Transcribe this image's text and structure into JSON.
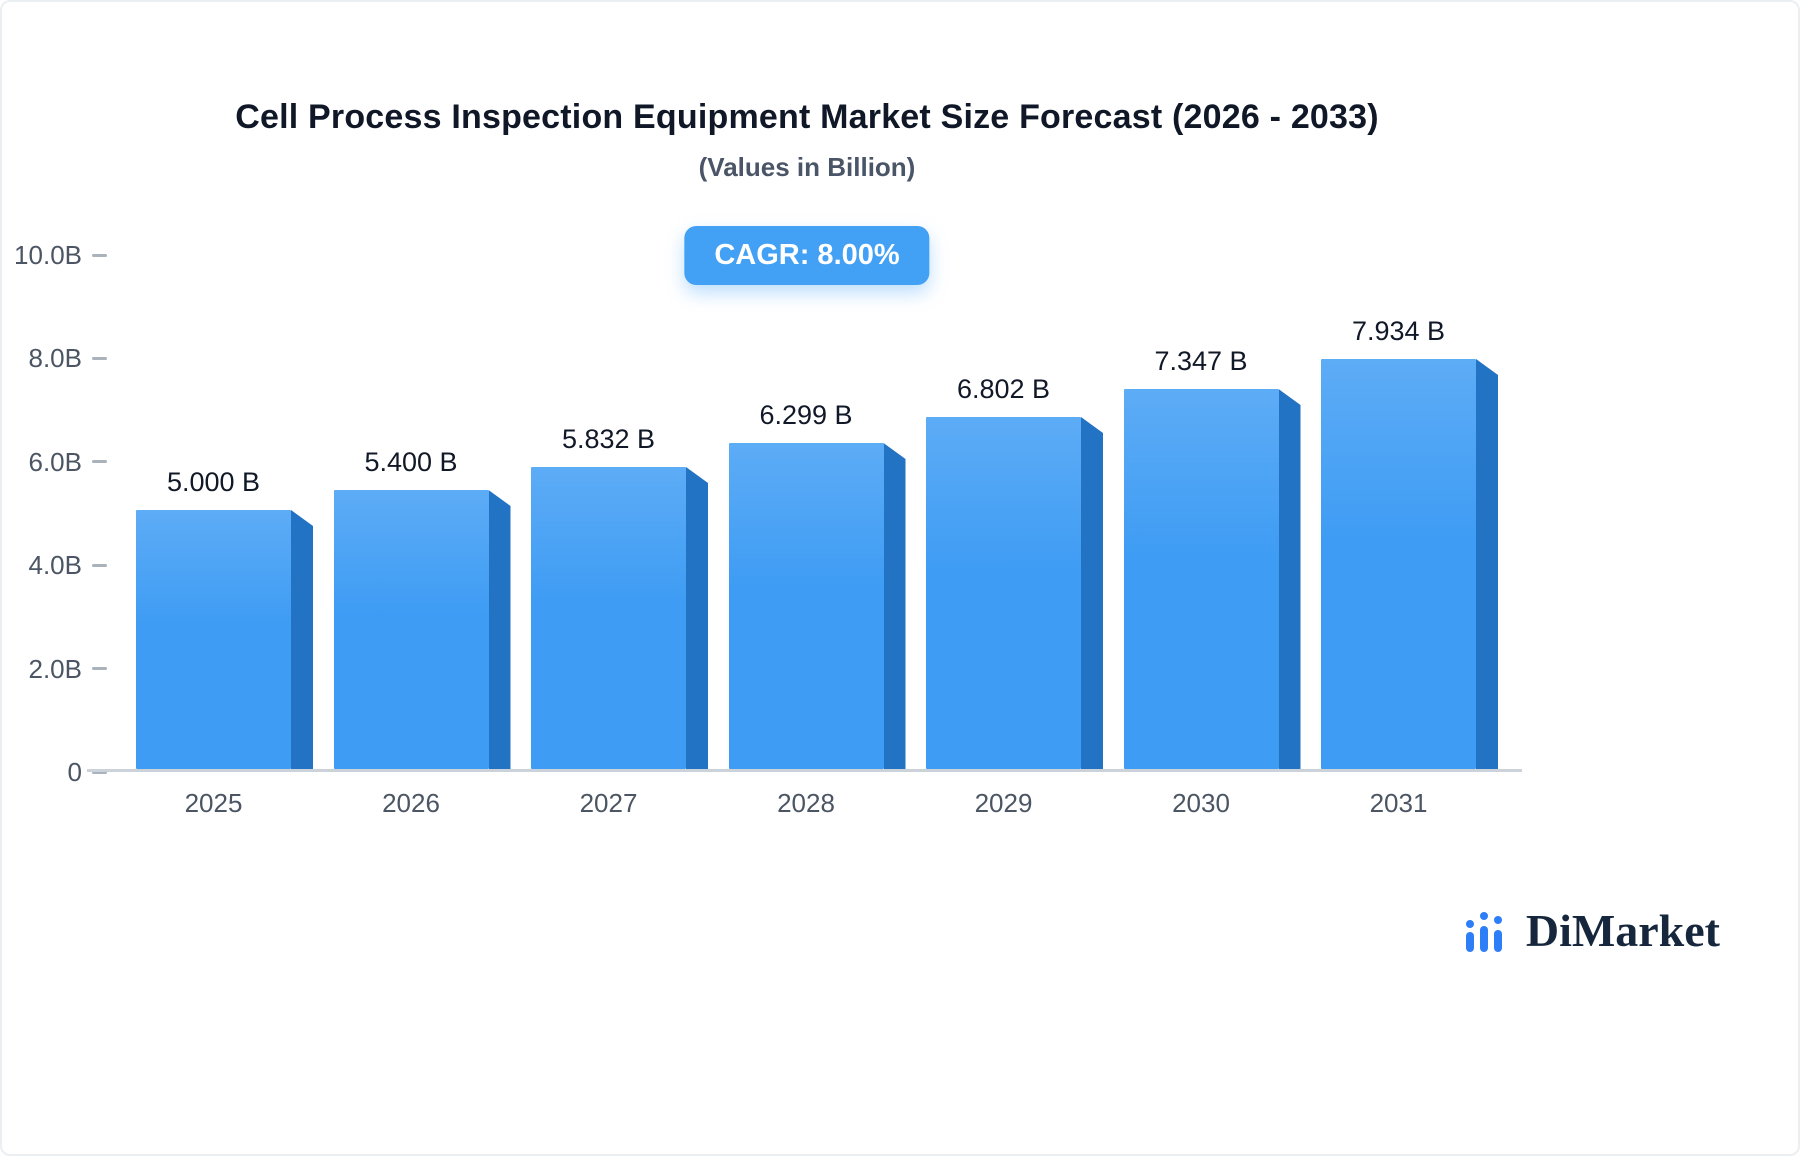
{
  "chart_data": {
    "type": "bar",
    "title": "Cell Process Inspection Equipment Market Size Forecast (2026 - 2033)",
    "subtitle": "(Values in Billion)",
    "cagr_label": "CAGR: 8.00%",
    "categories": [
      "2025",
      "2026",
      "2027",
      "2028",
      "2029",
      "2030",
      "2031"
    ],
    "values": [
      5.0,
      5.4,
      5.832,
      6.299,
      6.802,
      7.347,
      7.934
    ],
    "value_labels": [
      "5.000 B",
      "5.400 B",
      "5.832 B",
      "6.299 B",
      "6.802 B",
      "7.347 B",
      "7.934 B"
    ],
    "xlabel": "",
    "ylabel": "",
    "ylim": [
      0,
      10
    ],
    "y_tick_values": [
      0,
      2,
      4,
      6,
      8,
      10
    ],
    "y_tick_labels": [
      "0",
      "2.0B",
      "4.0B",
      "6.0B",
      "8.0B",
      "10.0B"
    ],
    "legend": "none",
    "grid": "off",
    "bar_face_color": "#3E9CF4",
    "bar_side_color": "#2273C4"
  },
  "colors": {
    "badge_bg": "#42a0f5",
    "badge_text": "#ffffff",
    "axis_line": "#ccd2d9",
    "brand_icon": "#2e7ef7",
    "brand_text": "#16263c"
  },
  "branding": {
    "name": "DiMarket"
  }
}
